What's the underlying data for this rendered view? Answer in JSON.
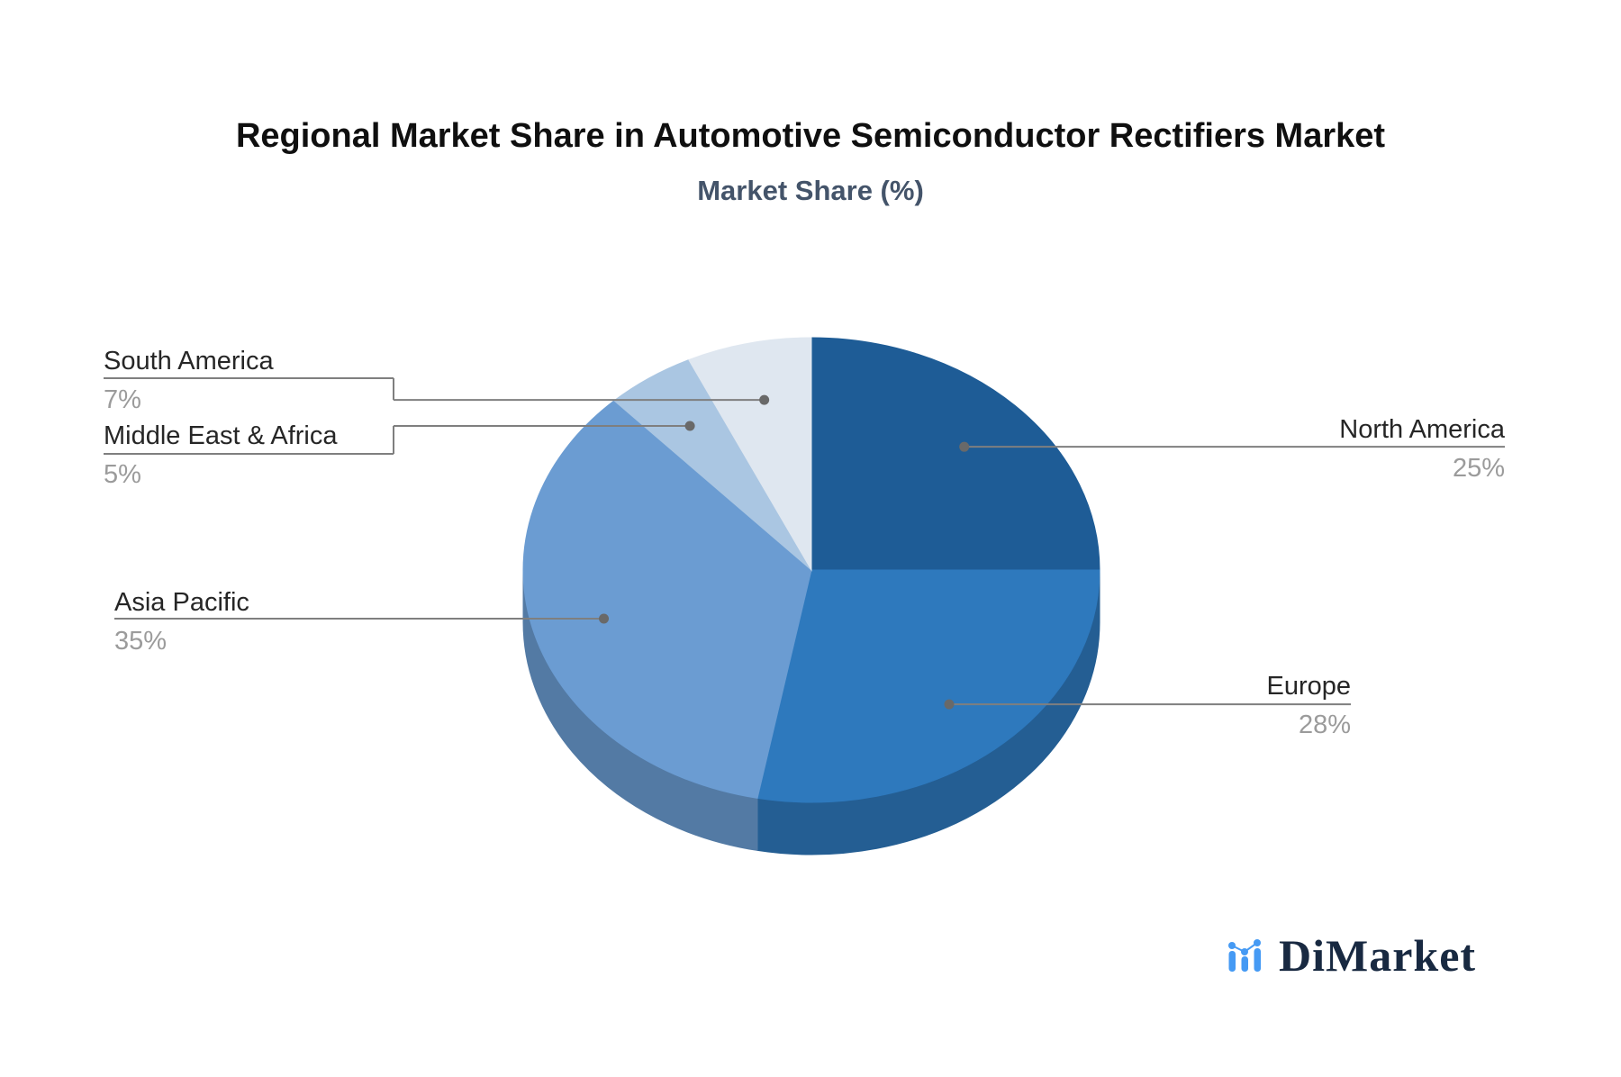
{
  "colors": {
    "background": "#ffffff",
    "title": "#0f0f0f",
    "subtitle": "#44546a",
    "category_label": "#262626",
    "value_label": "#9b9b9b",
    "leader_line": "#7f7f7f",
    "leader_dot": "#696969",
    "logo_text": "#182941",
    "logo_icon": "#459af4"
  },
  "chart_data": {
    "type": "pie",
    "style": "3d",
    "title": "Regional Market Share in Automotive Semiconductor Rectifiers Market",
    "subtitle": "Market Share (%)",
    "unit": "%",
    "start_angle": "12-oclock-clockwise",
    "categories": [
      "North America",
      "Europe",
      "Asia Pacific",
      "Middle East & Africa",
      "South America"
    ],
    "values": [
      25,
      28,
      35,
      5,
      7
    ],
    "display_values": [
      "25%",
      "28%",
      "35%",
      "5%",
      "7%"
    ],
    "slice_colors": [
      "#1e5c96",
      "#2e79bd",
      "#6b9cd2",
      "#aac6e2",
      "#dfe7f0"
    ],
    "legend": "none"
  },
  "logo": {
    "text": "DiMarket"
  }
}
